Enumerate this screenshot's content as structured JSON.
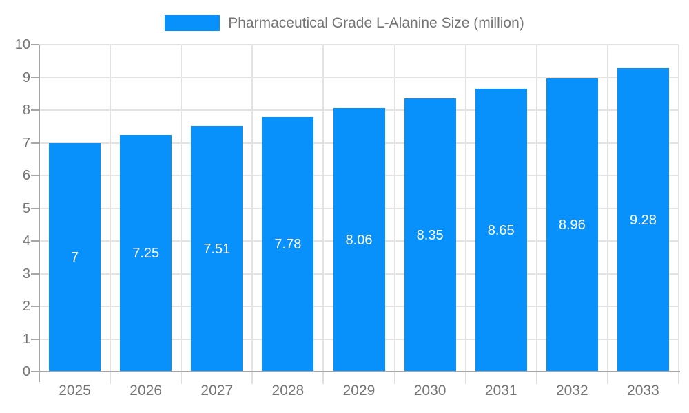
{
  "chart_data": {
    "type": "bar",
    "title": "Pharmaceutical Grade L-Alanine Size (million)",
    "series_name": "Pharmaceutical Grade L-Alanine Size (million)",
    "categories": [
      "2025",
      "2026",
      "2027",
      "2028",
      "2029",
      "2030",
      "2031",
      "2032",
      "2033"
    ],
    "values": [
      7,
      7.25,
      7.51,
      7.78,
      8.06,
      8.35,
      8.65,
      8.96,
      9.28
    ],
    "bar_labels": [
      "7",
      "7.25",
      "7.51",
      "7.78",
      "8.06",
      "8.35",
      "8.65",
      "8.96",
      "9.28"
    ],
    "xlabel": "",
    "ylabel": "",
    "ylim": [
      0,
      10
    ],
    "y_ticks": [
      0,
      1,
      2,
      3,
      4,
      5,
      6,
      7,
      8,
      9,
      10
    ],
    "grid": true,
    "legend_position": "top",
    "colors": {
      "bar": "#0991fb",
      "bar_label_text": "#ffffff",
      "gridline": "#e3e3e3",
      "axis_line": "#a6a6a6",
      "x_tick_line": "#e0e0e0",
      "axis_text": "#757575",
      "legend_text": "#757575",
      "background": "#ffffff"
    }
  }
}
